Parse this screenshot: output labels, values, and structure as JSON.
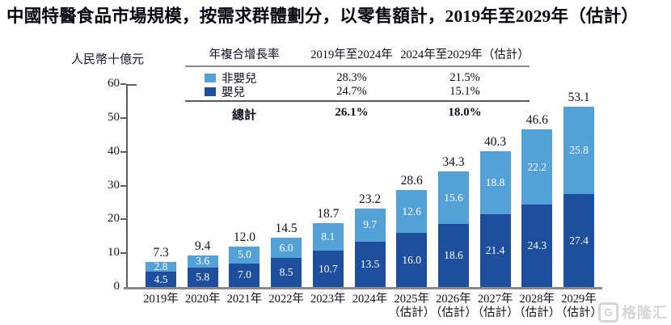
{
  "title": "中國特醫食品市場規模，按需求群體劃分，以零售額計，2019年至2029年（估計）",
  "y_axis_unit": "人民幣十億元",
  "cagr_table": {
    "header": [
      "年複合增長率",
      "2019年至2024年",
      "2024年至2029年（估計）"
    ],
    "rows": [
      {
        "label": "非嬰兒",
        "swatch_color": "#54a1d8",
        "values": [
          "28.3%",
          "21.5%"
        ]
      },
      {
        "label": "嬰兒",
        "swatch_color": "#1e4f9e",
        "values": [
          "24.7%",
          "15.1%"
        ]
      }
    ],
    "total_row": {
      "label": "總計",
      "values": [
        "26.1%",
        "18.0%"
      ]
    }
  },
  "chart_data": {
    "type": "bar",
    "stacked": true,
    "title": "中國特醫食品市場規模，按需求群體劃分，以零售額計，2019年至2029年（估計）",
    "ylabel": "人民幣十億元",
    "ylim": [
      0,
      60
    ],
    "yticks": [
      0,
      10,
      20,
      30,
      40,
      50,
      60
    ],
    "grid": false,
    "categories": [
      {
        "label": "2019年",
        "note": ""
      },
      {
        "label": "2020年",
        "note": ""
      },
      {
        "label": "2021年",
        "note": ""
      },
      {
        "label": "2022年",
        "note": ""
      },
      {
        "label": "2023年",
        "note": ""
      },
      {
        "label": "2024年",
        "note": ""
      },
      {
        "label": "2025年",
        "note": "（估計）"
      },
      {
        "label": "2026年",
        "note": "（估計）"
      },
      {
        "label": "2027年",
        "note": "（估計）"
      },
      {
        "label": "2028年",
        "note": "（估計）"
      },
      {
        "label": "2029年",
        "note": "（估計）"
      }
    ],
    "series": [
      {
        "name": "嬰兒",
        "color": "#1e4f9e",
        "values": [
          4.5,
          5.8,
          7.0,
          8.5,
          10.7,
          13.5,
          16.0,
          18.6,
          21.4,
          24.3,
          27.4
        ]
      },
      {
        "name": "非嬰兒",
        "color": "#54a1d8",
        "values": [
          2.8,
          3.6,
          5.0,
          6.0,
          8.1,
          9.7,
          12.6,
          15.6,
          18.8,
          22.2,
          25.8
        ]
      }
    ],
    "totals": [
      7.3,
      9.4,
      12.0,
      14.5,
      18.7,
      23.2,
      28.6,
      34.3,
      40.3,
      46.6,
      53.1
    ]
  },
  "watermark": {
    "logo_letter": "G",
    "text": "格隆汇"
  }
}
